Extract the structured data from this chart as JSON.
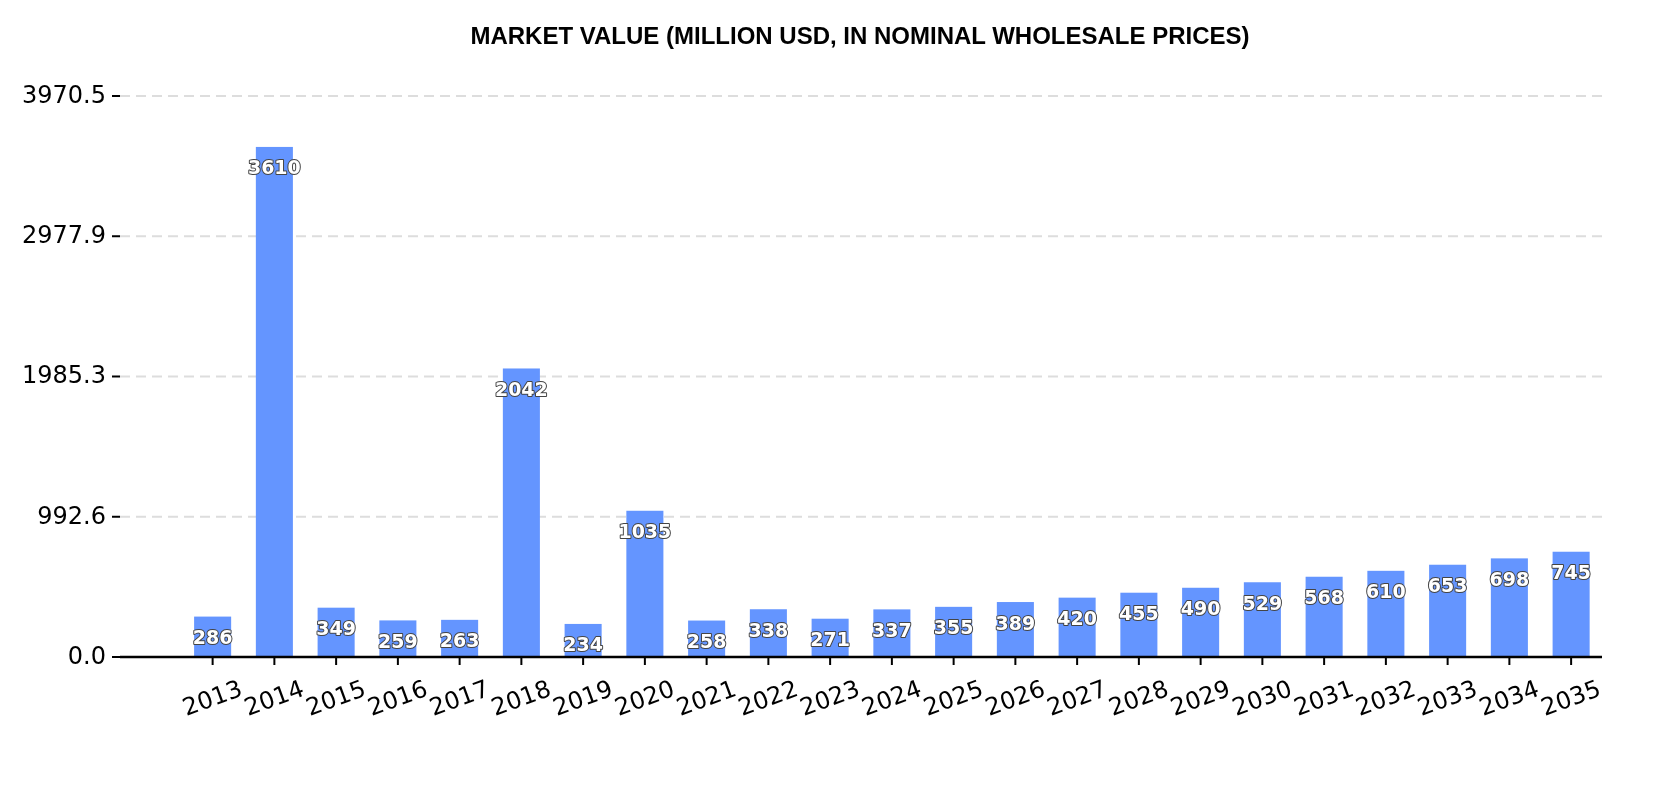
{
  "chart_data": {
    "type": "bar",
    "title": "MARKET VALUE (MILLION USD, IN NOMINAL WHOLESALE PRICES)",
    "categories": [
      "2013",
      "2014",
      "2015",
      "2016",
      "2017",
      "2018",
      "2019",
      "2020",
      "2021",
      "2022",
      "2023",
      "2024",
      "2025",
      "2026",
      "2027",
      "2028",
      "2029",
      "2030",
      "2031",
      "2032",
      "2033",
      "2034",
      "2035"
    ],
    "values": [
      286,
      3610,
      349,
      259,
      263,
      2042,
      234,
      1035,
      258,
      338,
      271,
      337,
      355,
      389,
      420,
      455,
      490,
      529,
      568,
      610,
      653,
      698,
      745
    ],
    "color": "#6495ff",
    "ylim": [
      0,
      3970.5
    ],
    "yticks": [
      {
        "value": 0,
        "label": "0.0"
      },
      992.6,
      1985.3,
      2977.9,
      3970.5
    ],
    "grid": "y",
    "data_labels": true
  }
}
